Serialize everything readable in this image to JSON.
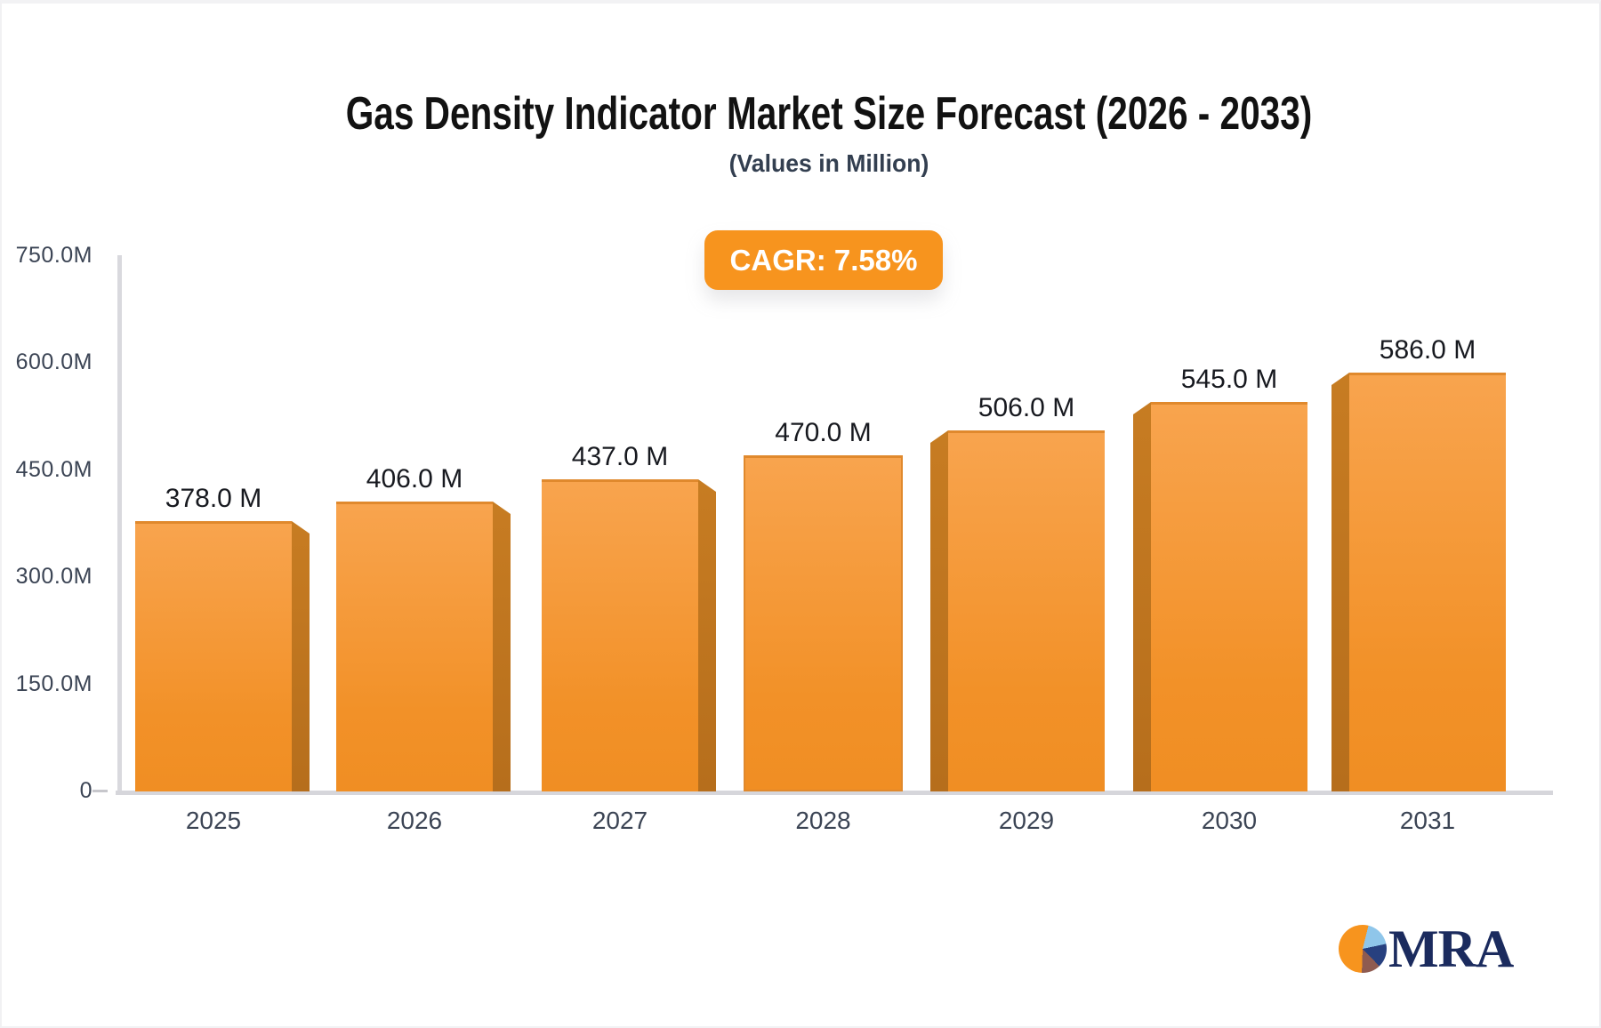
{
  "header": {
    "title": "Gas Density Indicator Market Size Forecast (2026 - 2033)",
    "subtitle": "(Values in Million)",
    "cagr_badge": "CAGR: 7.58%"
  },
  "chart_data": {
    "type": "bar",
    "title": "Gas Density Indicator Market Size Forecast (2026 - 2033)",
    "subtitle": "(Values in Million)",
    "categories": [
      "2025",
      "2026",
      "2027",
      "2028",
      "2029",
      "2030",
      "2031"
    ],
    "values": [
      378,
      406,
      437,
      470,
      506,
      545,
      586
    ],
    "value_labels": [
      "378.0 M",
      "406.0 M",
      "437.0 M",
      "470.0 M",
      "506.0 M",
      "545.0 M",
      "586.0 M"
    ],
    "unit": "Million",
    "y_ticks": [
      {
        "value": 750,
        "label": "750.0M"
      },
      {
        "value": 600,
        "label": "600.0M"
      },
      {
        "value": 450,
        "label": "450.0M"
      },
      {
        "value": 300,
        "label": "300.0M"
      },
      {
        "value": 150,
        "label": "150.0M"
      },
      {
        "value": 0,
        "label": "0"
      }
    ],
    "ylim": [
      0,
      750
    ],
    "grid": false,
    "legend": false,
    "style": "3d-extruded-bars, perspective toward center"
  },
  "colors": {
    "bar_face_top": "#F8A44E",
    "bar_face_bottom": "#F08E23",
    "bar_top_edge": "#E0892D",
    "bar_side_panel": "#BE741F",
    "badge_orange": "#F7941E",
    "axis_gray": "#D8D8DC",
    "tick_label": "#3B4454",
    "value_label": "#17191F",
    "title_text": "#121212",
    "subtitle_text": "#333F50",
    "logo_navy": "#1B2B5E",
    "logo_pie_orange": "#F7941E",
    "logo_pie_lightblue": "#8FC6EA",
    "logo_pie_navy": "#27407F",
    "logo_pie_maroon": "#8F5B50"
  },
  "logo": {
    "text": "MRA"
  }
}
